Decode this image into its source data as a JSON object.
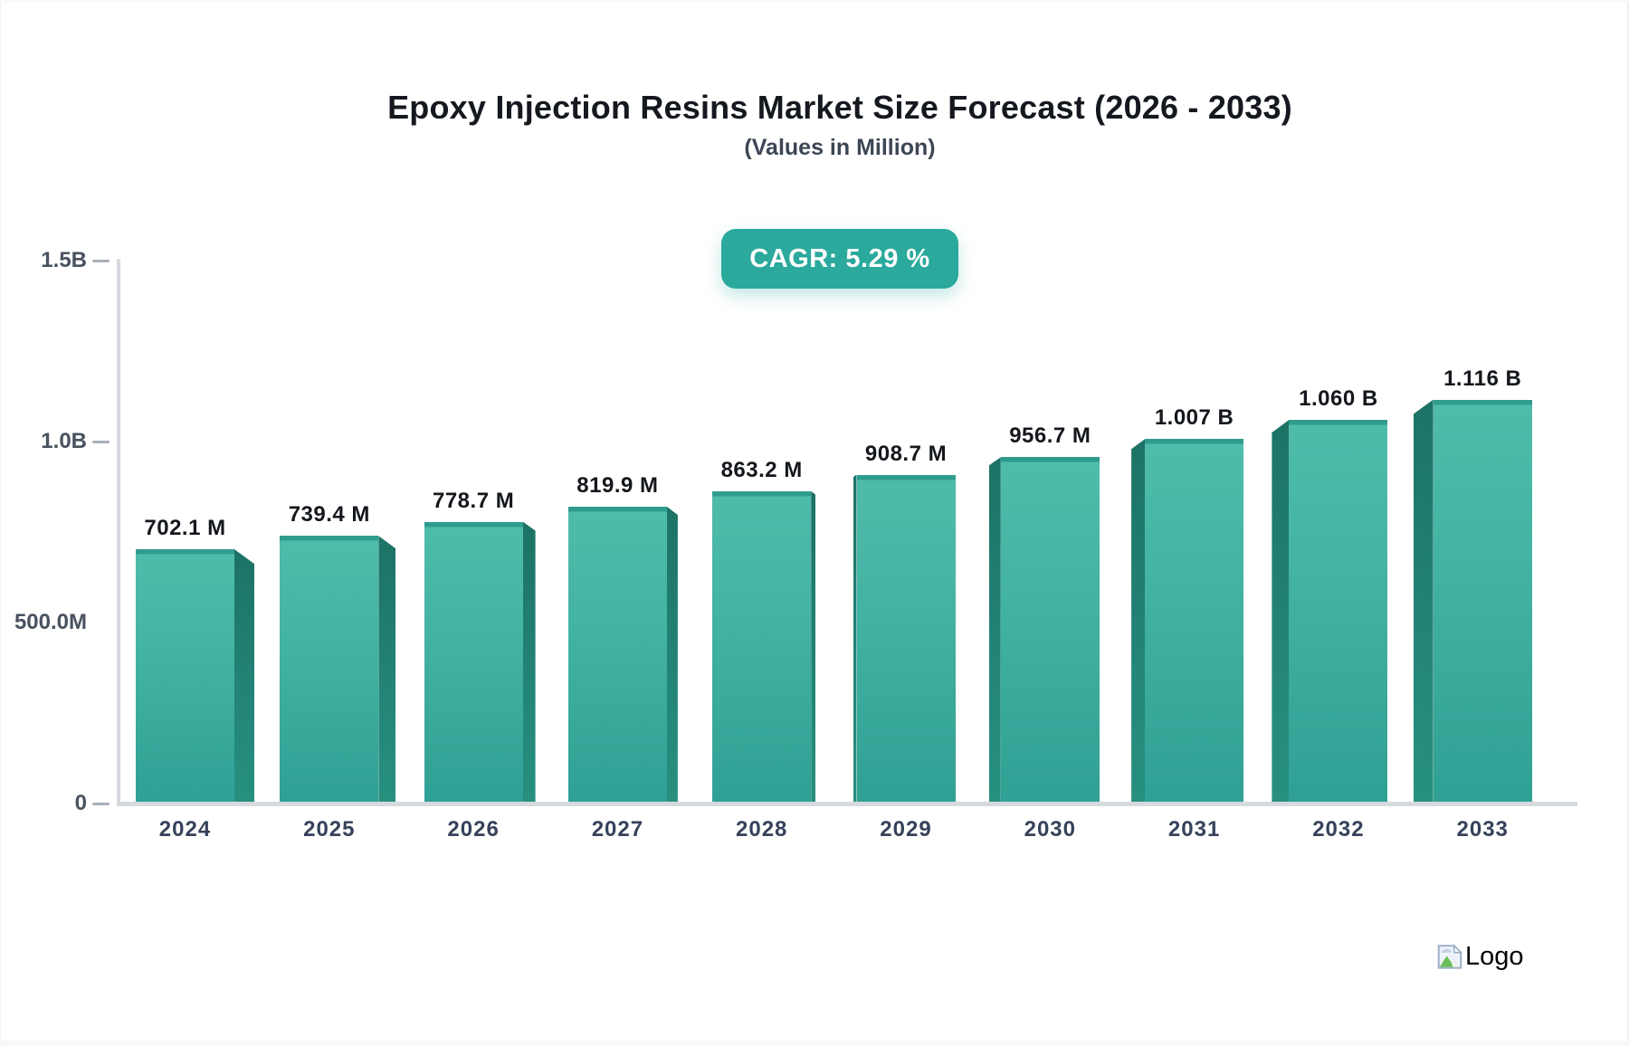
{
  "header": {
    "title": "Epoxy Injection Resins Market Size Forecast (2026 - 2033)",
    "subtitle": "(Values in Million)",
    "cagr_badge": "CAGR: 5.29 %"
  },
  "chart_data": {
    "type": "bar",
    "title": "Epoxy Injection Resins Market Size Forecast (2026 - 2033)",
    "subtitle": "(Values in Million)",
    "cagr_percent": 5.29,
    "categories": [
      "2024",
      "2025",
      "2026",
      "2027",
      "2028",
      "2029",
      "2030",
      "2031",
      "2032",
      "2033"
    ],
    "values_millions": [
      702.1,
      739.4,
      778.7,
      819.9,
      863.2,
      908.7,
      956.7,
      1007,
      1060,
      1116
    ],
    "bar_labels": [
      "702.1 M",
      "739.4 M",
      "778.7 M",
      "819.9 M",
      "863.2 M",
      "908.7 M",
      "956.7 M",
      "1.007 B",
      "1.060 B",
      "1.116 B"
    ],
    "xlabel": "",
    "ylabel": "",
    "ylim_millions": [
      0,
      1500
    ],
    "y_ticks": [
      {
        "label": "1.5B",
        "value_millions": 1500,
        "has_dash": true
      },
      {
        "label": "1.0B",
        "value_millions": 1000,
        "has_dash": true
      },
      {
        "label": "500.0M",
        "value_millions": 500,
        "has_dash": false
      },
      {
        "label": "0",
        "value_millions": 0,
        "has_dash": true
      }
    ],
    "grid": false,
    "legend": "none",
    "bar_style": "3d-extruded",
    "colors": {
      "bar_face_top": "#4fbcab",
      "bar_face_bottom": "#2fa094",
      "bar_top_edge": "#2f9c8e",
      "bar_side": "#1c7265",
      "badge_background": "#2aa99c",
      "badge_text": "#ffffff",
      "axis_line": "#d6dade",
      "tick_dash": "#a8afb9",
      "tick_text": "#49525f",
      "year_text": "#36425a",
      "value_text": "#14171c",
      "title_text": "#15191f",
      "subtitle_text": "#3c4654"
    }
  },
  "footer": {
    "logo_alt": "Logo"
  }
}
